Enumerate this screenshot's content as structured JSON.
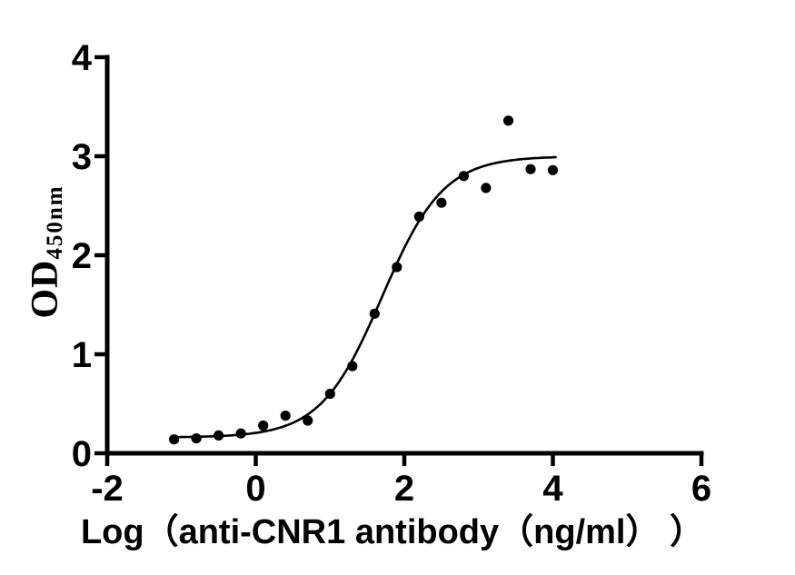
{
  "chart_data": {
    "type": "scatter",
    "title": "",
    "xlabel": "Log（anti-CNR1 antibody（ng/ml） ）",
    "ylabel_main": "OD",
    "ylabel_sub": "450nm",
    "xlim": [
      -2,
      6
    ],
    "ylim": [
      0,
      4
    ],
    "xticks": [
      -2,
      0,
      2,
      4,
      6
    ],
    "yticks": [
      0,
      1,
      2,
      3,
      4
    ],
    "grid": false,
    "legend": false,
    "marker_color": "#000000",
    "curve_color": "#000000",
    "axis_color": "#000000",
    "background_color": "#ffffff",
    "x": [
      -1.1,
      -0.8,
      -0.5,
      -0.2,
      0.1,
      0.4,
      0.7,
      1.0,
      1.3,
      1.6,
      1.9,
      2.2,
      2.5,
      2.8,
      3.1,
      3.4,
      3.7,
      4.0
    ],
    "y": [
      0.14,
      0.15,
      0.18,
      0.2,
      0.28,
      0.38,
      0.33,
      0.6,
      0.88,
      1.41,
      1.88,
      2.39,
      2.53,
      2.8,
      2.68,
      3.36,
      2.87,
      2.86
    ],
    "fit_curve": {
      "model": "4PL-sigmoid",
      "bottom": 0.16,
      "top": 3.0,
      "logEC50": 1.7,
      "hill": 1.05,
      "x_start": -1.12,
      "x_end": 4.05
    }
  }
}
